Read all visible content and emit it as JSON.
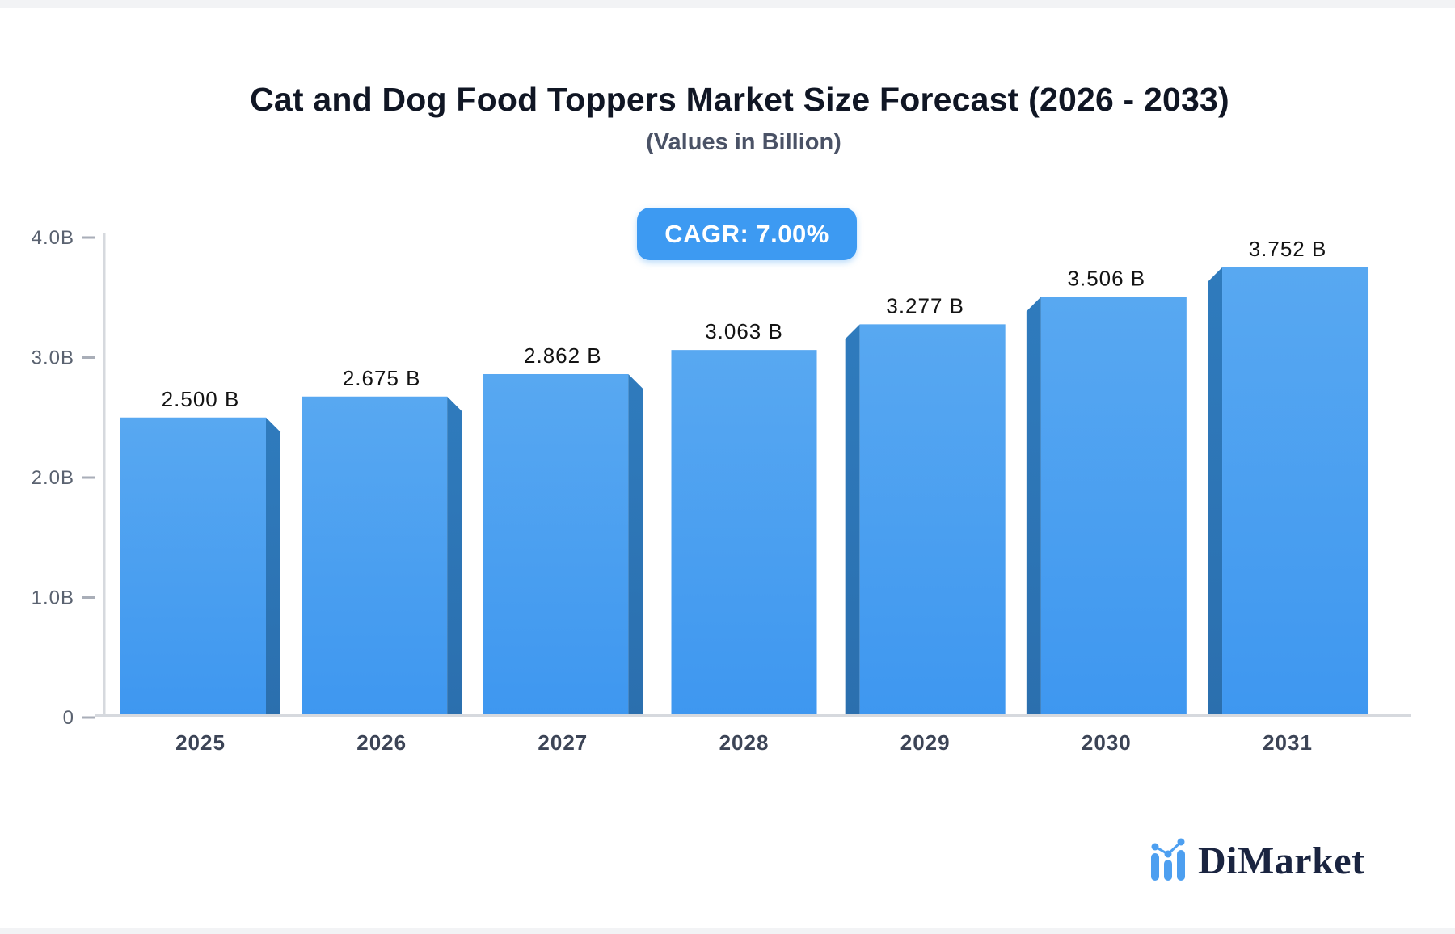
{
  "header": {
    "title": "Cat and Dog Food Toppers Market Size Forecast (2026 - 2033)",
    "subtitle": "(Values in Billion)"
  },
  "badge": {
    "label": "CAGR: 7.00%",
    "background": "#3d9af2",
    "text_color": "#ffffff"
  },
  "chart_data": {
    "type": "bar",
    "title": "Cat and Dog Food Toppers Market Size Forecast (2026 - 2033)",
    "subtitle": "(Values in Billion)",
    "unit": "Billion",
    "cagr": "7.00%",
    "categories": [
      "2025",
      "2026",
      "2027",
      "2028",
      "2029",
      "2030",
      "2031"
    ],
    "values": [
      2.5,
      2.675,
      2.862,
      3.063,
      3.277,
      3.506,
      3.752
    ],
    "value_labels": [
      "2.500 B",
      "2.675 B",
      "2.862 B",
      "3.063 B",
      "3.277 B",
      "3.506 B",
      "3.752 B"
    ],
    "ylim": [
      0,
      4.0
    ],
    "yticks": [
      {
        "value": 0,
        "label": "0"
      },
      {
        "value": 1.0,
        "label": "1.0B"
      },
      {
        "value": 2.0,
        "label": "2.0B"
      },
      {
        "value": 3.0,
        "label": "3.0B"
      },
      {
        "value": 4.0,
        "label": "4.0B"
      }
    ],
    "grid": false,
    "legend": "none",
    "bar_style": {
      "effect": "3d-center-perspective",
      "face_gradient_top": "#58a8f1",
      "face_gradient_bottom": "#3e97f0",
      "side_color_top": "#2f7bbd",
      "side_color_bottom": "#2b6fae",
      "axis_color": "#d6d9de",
      "tick_color": "#a9aeb8"
    }
  },
  "logo": {
    "name": "DiMarket",
    "icon": "bar-chart-logo-icon",
    "text_color": "#1a2440",
    "accent": "#4d9ff0"
  }
}
